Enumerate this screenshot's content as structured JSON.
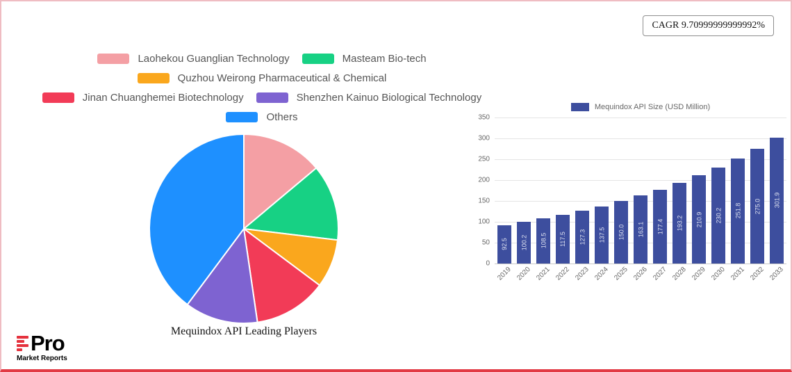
{
  "header": {
    "cagr": "CAGR 9.70999999999992%"
  },
  "logo": {
    "title": "Pro",
    "subtitle": "Market Reports"
  },
  "chart_data": [
    {
      "type": "pie",
      "title": "Mequindox API Leading Players",
      "legend_position": "top-left",
      "slices": [
        {
          "label": "Laohekou Guanglian Technology",
          "value": 13.9,
          "color": "#F49FA4"
        },
        {
          "label": "Masteam Bio-tech",
          "value": 13.0,
          "color": "#17D184"
        },
        {
          "label": "Quzhou Weirong Pharmaceutical & Chemical",
          "value": 8.3,
          "color": "#FAA71D"
        },
        {
          "label": "Jinan Chuanghemei Biotechnology",
          "value": 12.5,
          "color": "#F23B57"
        },
        {
          "label": "Shenzhen Kainuo Biological Technology",
          "value": 12.5,
          "color": "#7E63D1"
        },
        {
          "label": "Others",
          "value": 39.8,
          "color": "#1E90FF"
        }
      ]
    },
    {
      "type": "bar",
      "legend": "Mequindox API Size (USD Million)",
      "bar_color": "#3D4E9E",
      "categories": [
        "2019",
        "2020",
        "2021",
        "2022",
        "2023",
        "2024",
        "2025",
        "2026",
        "2027",
        "2028",
        "2029",
        "2030",
        "2031",
        "2032",
        "2033"
      ],
      "values": [
        92.5,
        100.2,
        108.5,
        117.5,
        127.3,
        137.5,
        150.0,
        163.1,
        177.4,
        193.2,
        210.9,
        230.2,
        251.8,
        275.0,
        301.9
      ],
      "labels": [
        "92.5",
        "100.2",
        "108.5",
        "117.5",
        "127.3",
        "137.5",
        "150.0",
        "163.1",
        "177.4",
        "193.2",
        "210.9",
        "230.2",
        "251.8",
        "275.0",
        "301.9"
      ],
      "ylabel": "",
      "xlabel": "",
      "ylim": [
        0,
        350
      ],
      "yticks": [
        0,
        50,
        100,
        150,
        200,
        250,
        300,
        350
      ],
      "grid": true
    }
  ]
}
